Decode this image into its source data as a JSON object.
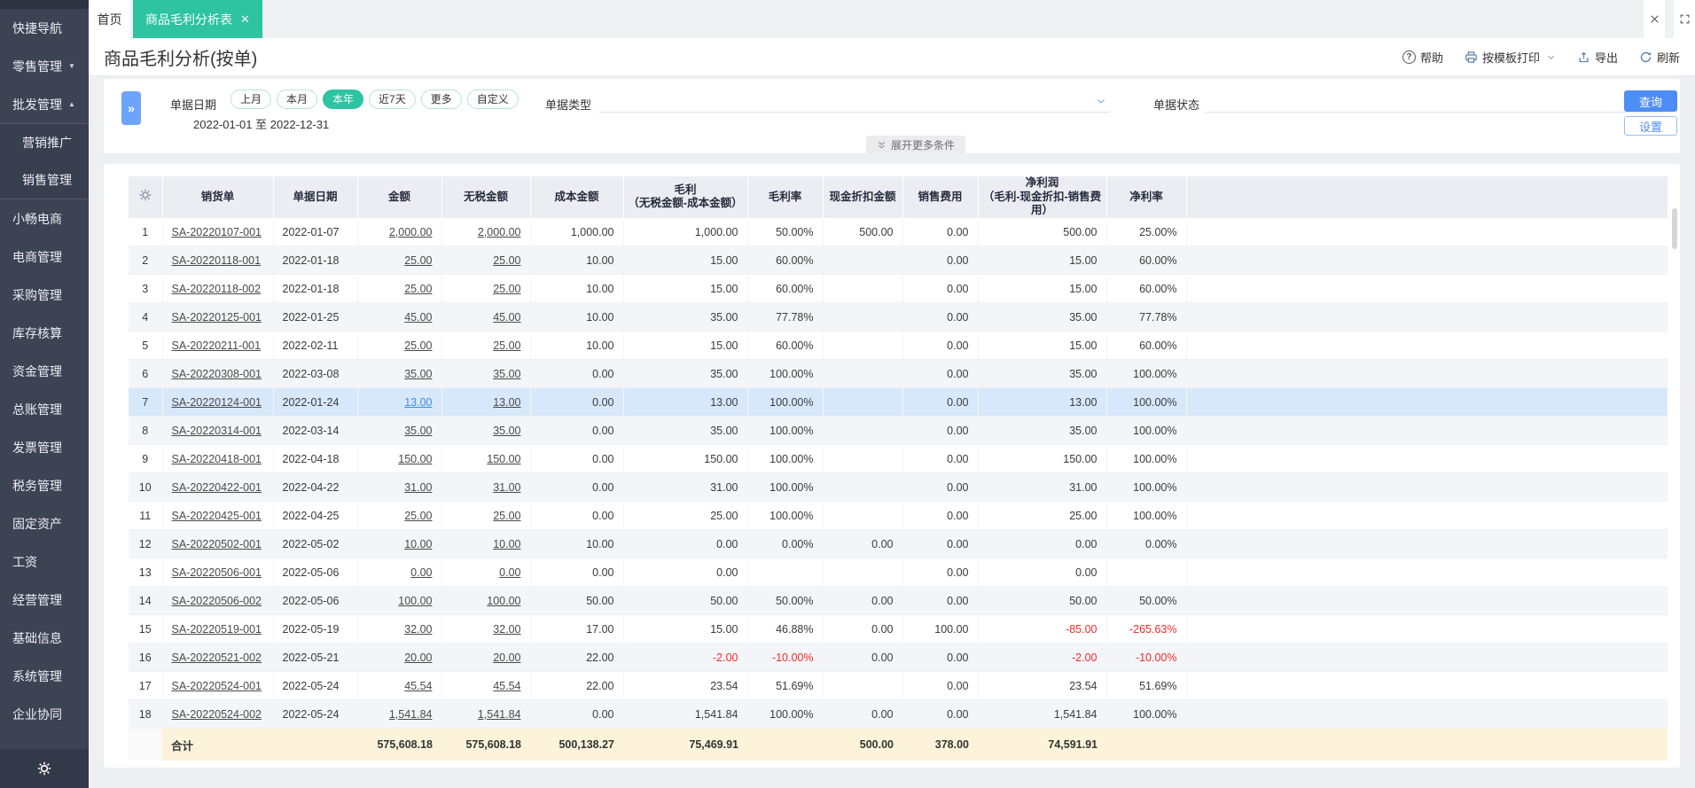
{
  "sidebar": {
    "items": [
      {
        "label": "快捷导航"
      },
      {
        "label": "零售管理",
        "arrow": "down"
      },
      {
        "label": "批发管理",
        "arrow": "up"
      },
      {
        "label": "营销推广",
        "type": "sub"
      },
      {
        "label": "销售管理",
        "type": "sub"
      },
      {
        "label": "小畅电商"
      },
      {
        "label": "电商管理"
      },
      {
        "label": "采购管理"
      },
      {
        "label": "库存核算"
      },
      {
        "label": "资金管理"
      },
      {
        "label": "总账管理"
      },
      {
        "label": "发票管理"
      },
      {
        "label": "税务管理"
      },
      {
        "label": "固定资产"
      },
      {
        "label": "工资"
      },
      {
        "label": "经营管理"
      },
      {
        "label": "基础信息"
      },
      {
        "label": "系统管理"
      },
      {
        "label": "企业协同"
      }
    ]
  },
  "tabs": {
    "home": "首页",
    "active": "商品毛利分析表"
  },
  "header": {
    "title": "商品毛利分析(按单)",
    "help": "帮助",
    "print": "按模板打印",
    "export": "导出",
    "refresh": "刷新"
  },
  "filters": {
    "date_label": "单据日期",
    "date_options": [
      "上月",
      "本月",
      "本年",
      "近7天",
      "更多",
      "自定义"
    ],
    "date_selected": "本年",
    "date_range": "2022-01-01 至 2022-12-31",
    "type_label": "单据类型",
    "status_label": "单据状态",
    "query": "查询",
    "settings": "设置",
    "expand_more": "展开更多条件"
  },
  "icons": {
    "help-icon": "? in circle",
    "print-icon": "printer",
    "export-icon": "arrow out of box",
    "refresh-icon": "circular arrow",
    "close-icon": "×",
    "fullscreen-icon": "corner brackets",
    "collapse-icon": "»",
    "double-chevron-down-icon": "≫ rotated down",
    "chevron-down-icon": "v",
    "gear-icon": "cog"
  },
  "table": {
    "columns": [
      "销货单",
      "单据日期",
      "金额",
      "无税金额",
      "成本金额",
      "毛利\n（无税金额-成本金额）",
      "毛利率",
      "现金折扣金额",
      "销售费用",
      "净利润\n（毛利-现金折扣-销售费用）",
      "净利率"
    ],
    "rows": [
      {
        "no": "1",
        "order": "SA-20220107-001",
        "date": "2022-01-07",
        "amount": "2,000.00",
        "tax_free": "2,000.00",
        "cost": "1,000.00",
        "gross": "1,000.00",
        "gross_rate": "50.00%",
        "cash_discount": "500.00",
        "expense": "0.00",
        "net": "500.00",
        "net_rate": "25.00%"
      },
      {
        "no": "2",
        "order": "SA-20220118-001",
        "date": "2022-01-18",
        "amount": "25.00",
        "tax_free": "25.00",
        "cost": "10.00",
        "gross": "15.00",
        "gross_rate": "60.00%",
        "cash_discount": "",
        "expense": "0.00",
        "net": "15.00",
        "net_rate": "60.00%"
      },
      {
        "no": "3",
        "order": "SA-20220118-002",
        "date": "2022-01-18",
        "amount": "25.00",
        "tax_free": "25.00",
        "cost": "10.00",
        "gross": "15.00",
        "gross_rate": "60.00%",
        "cash_discount": "",
        "expense": "0.00",
        "net": "15.00",
        "net_rate": "60.00%"
      },
      {
        "no": "4",
        "order": "SA-20220125-001",
        "date": "2022-01-25",
        "amount": "45.00",
        "tax_free": "45.00",
        "cost": "10.00",
        "gross": "35.00",
        "gross_rate": "77.78%",
        "cash_discount": "",
        "expense": "0.00",
        "net": "35.00",
        "net_rate": "77.78%"
      },
      {
        "no": "5",
        "order": "SA-20220211-001",
        "date": "2022-02-11",
        "amount": "25.00",
        "tax_free": "25.00",
        "cost": "10.00",
        "gross": "15.00",
        "gross_rate": "60.00%",
        "cash_discount": "",
        "expense": "0.00",
        "net": "15.00",
        "net_rate": "60.00%"
      },
      {
        "no": "6",
        "order": "SA-20220308-001",
        "date": "2022-03-08",
        "amount": "35.00",
        "tax_free": "35.00",
        "cost": "0.00",
        "gross": "35.00",
        "gross_rate": "100.00%",
        "cash_discount": "",
        "expense": "0.00",
        "net": "35.00",
        "net_rate": "100.00%"
      },
      {
        "no": "7",
        "order": "SA-20220124-001",
        "date": "2022-01-24",
        "amount": "13.00",
        "tax_free": "13.00",
        "cost": "0.00",
        "gross": "13.00",
        "gross_rate": "100.00%",
        "cash_discount": "",
        "expense": "0.00",
        "net": "13.00",
        "net_rate": "100.00%",
        "selected": true
      },
      {
        "no": "8",
        "order": "SA-20220314-001",
        "date": "2022-03-14",
        "amount": "35.00",
        "tax_free": "35.00",
        "cost": "0.00",
        "gross": "35.00",
        "gross_rate": "100.00%",
        "cash_discount": "",
        "expense": "0.00",
        "net": "35.00",
        "net_rate": "100.00%"
      },
      {
        "no": "9",
        "order": "SA-20220418-001",
        "date": "2022-04-18",
        "amount": "150.00",
        "tax_free": "150.00",
        "cost": "0.00",
        "gross": "150.00",
        "gross_rate": "100.00%",
        "cash_discount": "",
        "expense": "0.00",
        "net": "150.00",
        "net_rate": "100.00%"
      },
      {
        "no": "10",
        "order": "SA-20220422-001",
        "date": "2022-04-22",
        "amount": "31.00",
        "tax_free": "31.00",
        "cost": "0.00",
        "gross": "31.00",
        "gross_rate": "100.00%",
        "cash_discount": "",
        "expense": "0.00",
        "net": "31.00",
        "net_rate": "100.00%"
      },
      {
        "no": "11",
        "order": "SA-20220425-001",
        "date": "2022-04-25",
        "amount": "25.00",
        "tax_free": "25.00",
        "cost": "0.00",
        "gross": "25.00",
        "gross_rate": "100.00%",
        "cash_discount": "",
        "expense": "0.00",
        "net": "25.00",
        "net_rate": "100.00%"
      },
      {
        "no": "12",
        "order": "SA-20220502-001",
        "date": "2022-05-02",
        "amount": "10.00",
        "tax_free": "10.00",
        "cost": "10.00",
        "gross": "0.00",
        "gross_rate": "0.00%",
        "cash_discount": "0.00",
        "expense": "0.00",
        "net": "0.00",
        "net_rate": "0.00%"
      },
      {
        "no": "13",
        "order": "SA-20220506-001",
        "date": "2022-05-06",
        "amount": "0.00",
        "tax_free": "0.00",
        "cost": "0.00",
        "gross": "0.00",
        "gross_rate": "",
        "cash_discount": "",
        "expense": "0.00",
        "net": "0.00",
        "net_rate": ""
      },
      {
        "no": "14",
        "order": "SA-20220506-002",
        "date": "2022-05-06",
        "amount": "100.00",
        "tax_free": "100.00",
        "cost": "50.00",
        "gross": "50.00",
        "gross_rate": "50.00%",
        "cash_discount": "0.00",
        "expense": "0.00",
        "net": "50.00",
        "net_rate": "50.00%"
      },
      {
        "no": "15",
        "order": "SA-20220519-001",
        "date": "2022-05-19",
        "amount": "32.00",
        "tax_free": "32.00",
        "cost": "17.00",
        "gross": "15.00",
        "gross_rate": "46.88%",
        "cash_discount": "0.00",
        "expense": "100.00",
        "net": "-85.00",
        "net_rate": "-265.63%"
      },
      {
        "no": "16",
        "order": "SA-20220521-002",
        "date": "2022-05-21",
        "amount": "20.00",
        "tax_free": "20.00",
        "cost": "22.00",
        "gross": "-2.00",
        "gross_rate": "-10.00%",
        "cash_discount": "0.00",
        "expense": "0.00",
        "net": "-2.00",
        "net_rate": "-10.00%"
      },
      {
        "no": "17",
        "order": "SA-20220524-001",
        "date": "2022-05-24",
        "amount": "45.54",
        "tax_free": "45.54",
        "cost": "22.00",
        "gross": "23.54",
        "gross_rate": "51.69%",
        "cash_discount": "",
        "expense": "0.00",
        "net": "23.54",
        "net_rate": "51.69%"
      },
      {
        "no": "18",
        "order": "SA-20220524-002",
        "date": "2022-05-24",
        "amount": "1,541.84",
        "tax_free": "1,541.84",
        "cost": "0.00",
        "gross": "1,541.84",
        "gross_rate": "100.00%",
        "cash_discount": "0.00",
        "expense": "0.00",
        "net": "1,541.84",
        "net_rate": "100.00%"
      }
    ],
    "total": {
      "label": "合计",
      "amount": "575,608.18",
      "tax_free": "575,608.18",
      "cost": "500,138.27",
      "gross": "75,469.91",
      "gross_rate": "",
      "cash_discount": "500.00",
      "expense": "378.00",
      "net": "74,591.91",
      "net_rate": ""
    }
  },
  "colors": {
    "accent_green": "#2ec3a1",
    "accent_blue": "#4e8df6",
    "sidebar_bg": "#3e4354",
    "total_row_bg": "#fcf3da",
    "selected_row_bg": "#d8e8fb",
    "negative": "#f22b2b"
  }
}
